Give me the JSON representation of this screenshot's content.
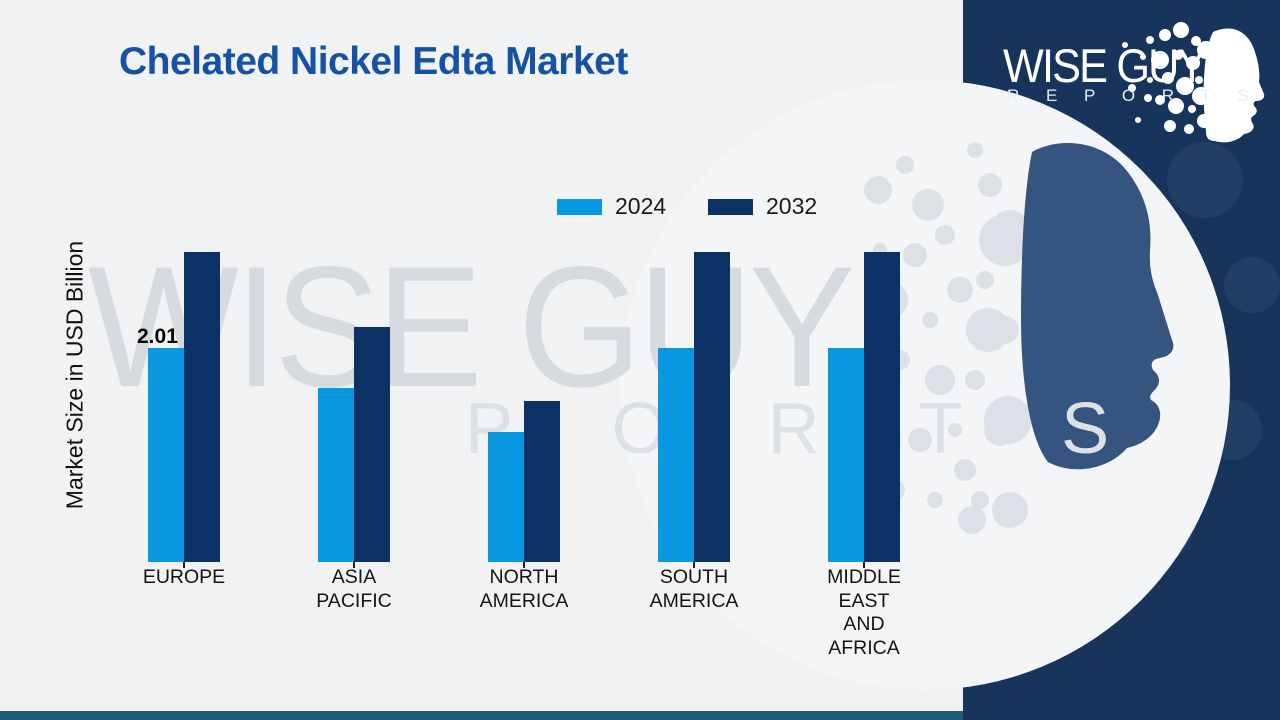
{
  "title": "Chelated Nickel Edta Market",
  "y_axis_label": "Market Size in USD Billion",
  "legend": [
    {
      "label": "2024",
      "color": "#0897e1"
    },
    {
      "label": "2032",
      "color": "#0c3164"
    }
  ],
  "annotation": {
    "value": "2.01",
    "series": "2024",
    "category": "EUROPE"
  },
  "watermark": {
    "line1": "WISE GUY",
    "line2": "R E P O R T S"
  },
  "logo": {
    "line1": "WISE GUY",
    "line2": "R E P O R T S"
  },
  "colors": {
    "background": "#f1f2f3",
    "panel_navy": "#16345c",
    "bar_2024": "#0897e1",
    "bar_2032": "#0c3164",
    "footer_strip": "#1c5e7e",
    "title_blue": "#1652a3",
    "face_silhouette": "#35547f"
  },
  "chart_data": {
    "type": "bar",
    "categories": [
      "EUROPE",
      "ASIA PACIFIC",
      "NORTH AMERICA",
      "SOUTH AMERICA",
      "MIDDLE EAST AND AFRICA"
    ],
    "category_label_lines": [
      [
        "EUROPE"
      ],
      [
        "ASIA",
        "PACIFIC"
      ],
      [
        "NORTH",
        "AMERICA"
      ],
      [
        "SOUTH",
        "AMERICA"
      ],
      [
        "MIDDLE",
        "EAST",
        "AND",
        "AFRICA"
      ]
    ],
    "series": [
      {
        "name": "2024",
        "color": "#0897e1",
        "values": [
          2.01,
          1.63,
          1.22,
          2.01,
          2.01
        ]
      },
      {
        "name": "2032",
        "color": "#0c3164",
        "values": [
          2.91,
          2.21,
          1.51,
          2.91,
          2.91
        ]
      }
    ],
    "title": "Chelated Nickel Edta Market",
    "xlabel": "",
    "ylabel": "Market Size in USD Billion",
    "ylim": [
      0,
      3.2
    ],
    "grid": false,
    "legend_position": "top-center",
    "data_labels": {
      "EUROPE": {
        "2024": "2.01"
      }
    }
  }
}
